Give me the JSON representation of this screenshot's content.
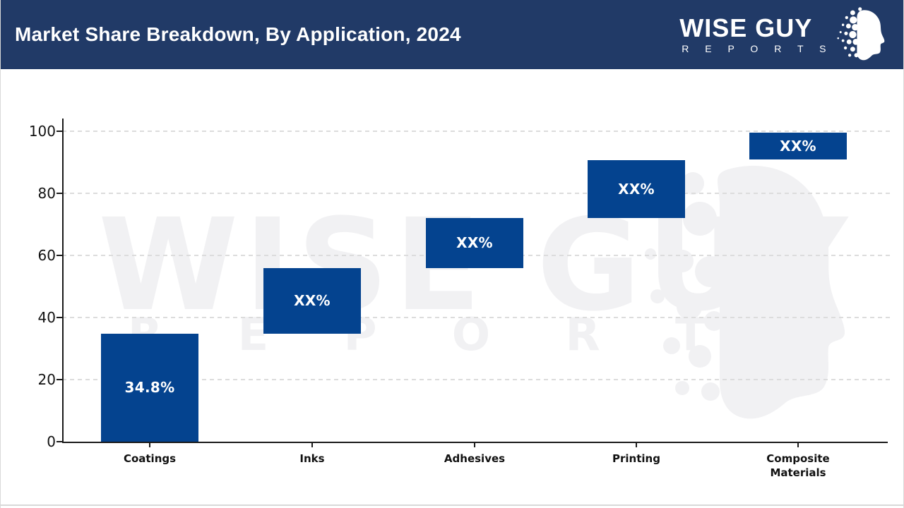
{
  "header": {
    "title": "Market Share Breakdown, By Application, 2024",
    "background_color": "#213a67",
    "logo": {
      "line1": "WISE GUY",
      "line2": "R E P O R T S"
    }
  },
  "watermark": {
    "line1": "WISE GUY",
    "line2": "R E P O R T S"
  },
  "chart_data": {
    "type": "bar",
    "subtype": "waterfall",
    "title": "Market Share Breakdown, By Application, 2024",
    "xlabel": "",
    "ylabel": "",
    "ylim": [
      0,
      105
    ],
    "yticks": [
      0,
      20,
      40,
      60,
      80,
      100
    ],
    "grid": "horizontal-dashed",
    "legend": "none",
    "bar_color": "#04438f",
    "categories": [
      "Coatings",
      "Inks",
      "Adhesives",
      "Printing",
      "Composite Materials"
    ],
    "segments": [
      {
        "category": "Coatings",
        "start": 0,
        "end": 34.8,
        "label": "34.8%"
      },
      {
        "category": "Inks",
        "start": 34.8,
        "end": 56.0,
        "label": "XX%"
      },
      {
        "category": "Adhesives",
        "start": 56.0,
        "end": 72.0,
        "label": "XX%"
      },
      {
        "category": "Printing",
        "start": 72.0,
        "end": 90.7,
        "label": "XX%"
      },
      {
        "category": "Composite Materials",
        "start": 91.0,
        "end": 99.5,
        "label": "XX%"
      }
    ]
  },
  "colors": {
    "axis": "#1a1a1a",
    "grid": "#dcdcdc",
    "bar": "#04438f",
    "bar_label": "#ffffff",
    "tick_label": "#111111",
    "watermark": "#f1f1f3",
    "header": "#213a67",
    "border": "#d9d9d9"
  }
}
